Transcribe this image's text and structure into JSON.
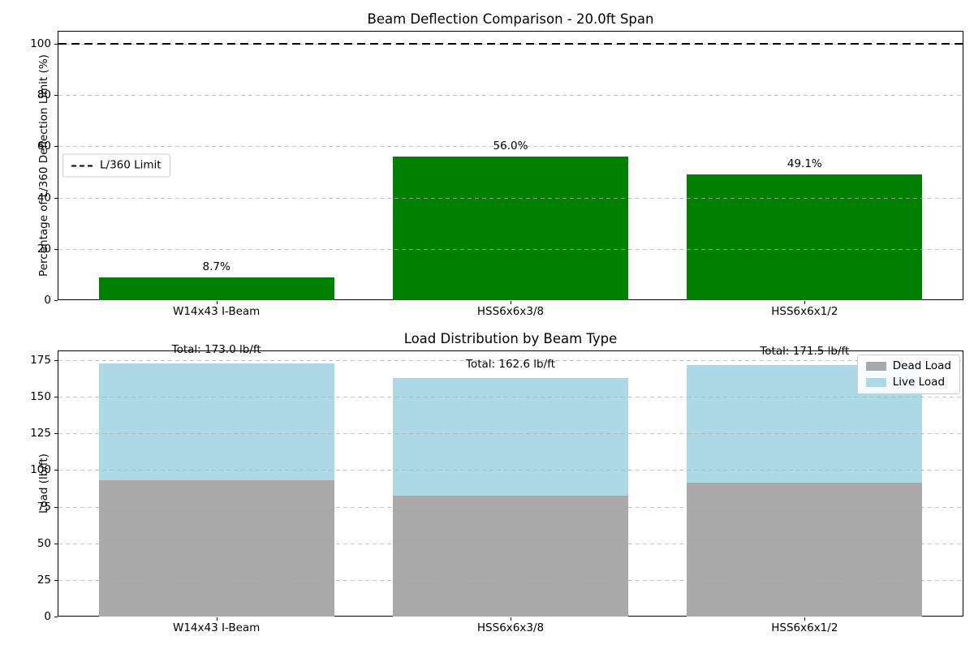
{
  "figure": {
    "background": "#ffffff"
  },
  "colors": {
    "grid": "#b0b0b0",
    "spine": "#000000",
    "text": "#000000"
  },
  "chart_data": [
    {
      "type": "bar",
      "title": "Beam Deflection Comparison - 20.0ft Span",
      "ylabel": "Percentage of L/360 Deflection Limit (%)",
      "xlabel": "",
      "categories": [
        "W14x43 I-Beam",
        "HSS6x6x3/8",
        "HSS6x6x1/2"
      ],
      "values": [
        8.7,
        56.0,
        49.1
      ],
      "value_labels": [
        "8.7%",
        "56.0%",
        "49.1%"
      ],
      "bar_color": "#008000",
      "ylim": [
        0,
        105
      ],
      "yticks": [
        0,
        20,
        40,
        60,
        80,
        100
      ],
      "grid": true,
      "grid_style": "dashed",
      "limit_line": {
        "value": 100,
        "label": "L/360 Limit",
        "color": "#000000",
        "style": "dashed"
      },
      "legend": {
        "position": "center-left",
        "items": [
          {
            "label": "L/360 Limit",
            "marker": "dashed-line",
            "color": "#000000"
          }
        ]
      }
    },
    {
      "type": "stacked-bar",
      "title": "Load Distribution by Beam Type",
      "ylabel": "Load (lb/ft)",
      "xlabel": "",
      "categories": [
        "W14x43 I-Beam",
        "HSS6x6x3/8",
        "HSS6x6x1/2"
      ],
      "series": [
        {
          "name": "Dead Load",
          "color": "#a9a9a9",
          "values": [
            93.0,
            82.6,
            91.5
          ]
        },
        {
          "name": "Live Load",
          "color": "#add8e6",
          "values": [
            80.0,
            80.0,
            80.0
          ]
        }
      ],
      "totals": [
        173.0,
        162.6,
        171.5
      ],
      "total_labels": [
        "Total: 173.0 lb/ft",
        "Total: 162.6 lb/ft",
        "Total: 171.5 lb/ft"
      ],
      "ylim": [
        0,
        181.7
      ],
      "yticks": [
        0,
        25,
        50,
        75,
        100,
        125,
        150,
        175
      ],
      "grid": true,
      "grid_style": "dashed",
      "legend": {
        "position": "upper-right",
        "items": [
          {
            "label": "Dead Load",
            "marker": "swatch",
            "color": "#a9a9a9"
          },
          {
            "label": "Live Load",
            "marker": "swatch",
            "color": "#add8e6"
          }
        ]
      }
    }
  ]
}
